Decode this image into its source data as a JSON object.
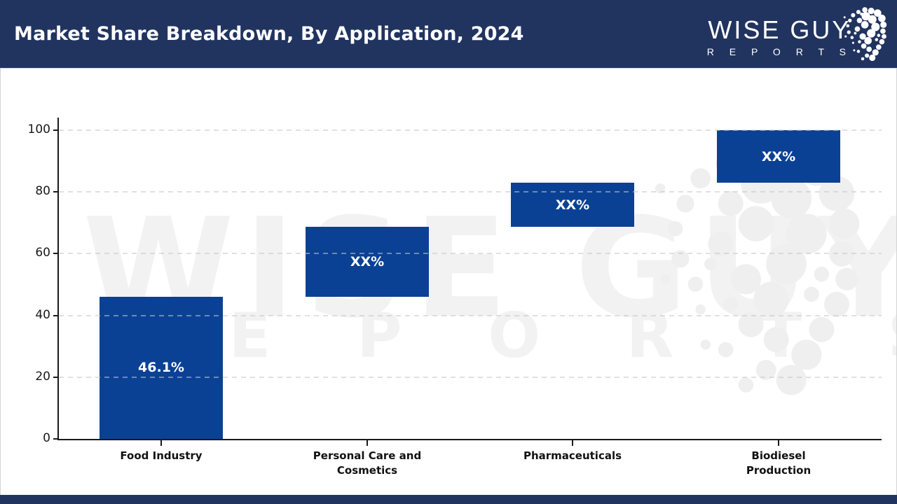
{
  "header": {
    "title": "Market Share Breakdown, By Application, 2024",
    "logo": {
      "line1": "WISE GUY",
      "line2": "R E P O R T S"
    }
  },
  "watermark": {
    "line1": "WISE GUY",
    "line2": "R E P O R T S"
  },
  "colors": {
    "header_bg": "#213460",
    "bar": "#0a4195",
    "bar_label": "#ffffff",
    "title_text": "#ffffff",
    "axis": "#1a1a1a",
    "grid": "#d9d9d9",
    "watermark": "#f2f2f2"
  },
  "chart_data": {
    "type": "bar",
    "subtype": "waterfall",
    "title": "Market Share Breakdown, By Application, 2024",
    "categories": [
      "Food Industry",
      "Personal Care and\nCosmetics",
      "Pharmaceuticals",
      "Biodiesel\nProduction"
    ],
    "bars": [
      {
        "category": "Food Industry",
        "start": 0,
        "end": 46.1,
        "label": "46.1%"
      },
      {
        "category": "Personal Care and Cosmetics",
        "start": 46.1,
        "end": 68.6,
        "label": "XX%"
      },
      {
        "category": "Pharmaceuticals",
        "start": 68.6,
        "end": 82.9,
        "label": "XX%"
      },
      {
        "category": "Biodiesel Production",
        "start": 82.9,
        "end": 100,
        "label": "XX%"
      }
    ],
    "xlabel": "",
    "ylabel": "",
    "ylim": [
      0,
      100
    ],
    "yticks": [
      0,
      20,
      40,
      60,
      80,
      100
    ],
    "grid": "dashed-horizontal",
    "legend": "none"
  }
}
